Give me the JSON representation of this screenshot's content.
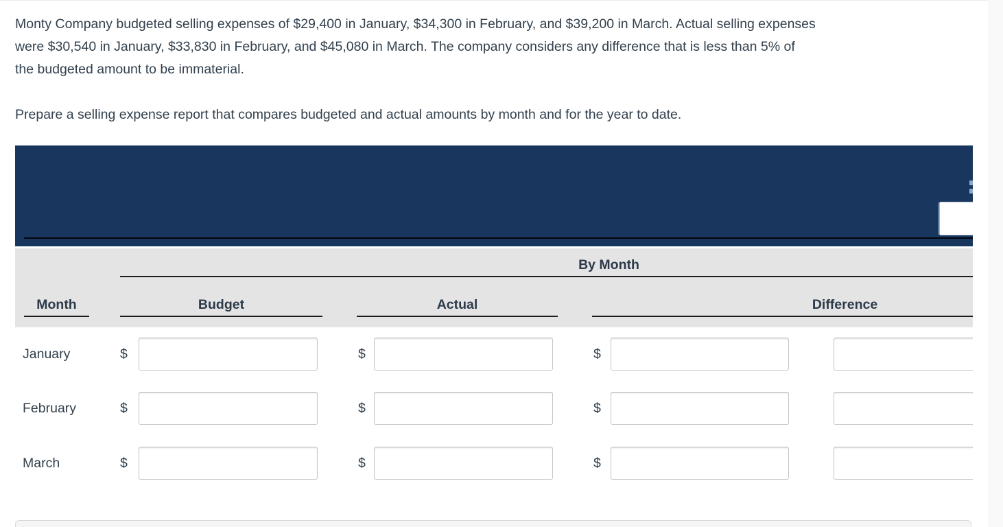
{
  "problem": {
    "statement_lines": [
      "Monty Company budgeted selling expenses of $29,400 in January, $34,300 in February, and $39,200 in March. Actual selling expenses",
      "were $30,540 in January, $33,830 in February, and $45,080 in March. The company considers any difference that is less than 5% of",
      "the budgeted amount to be immaterial."
    ],
    "instruction": "Prepare a selling expense report that compares budgeted and actual amounts by month and for the year to date."
  },
  "report": {
    "group_header": "By Month",
    "columns": {
      "month": "Month",
      "budget": "Budget",
      "actual": "Actual",
      "difference": "Difference"
    },
    "currency_symbol": "$",
    "rows": [
      {
        "month": "January",
        "budget_value": "",
        "actual_value": "",
        "difference_value": "",
        "materiality_value": ""
      },
      {
        "month": "February",
        "budget_value": "",
        "actual_value": "",
        "difference_value": "",
        "materiality_value": ""
      },
      {
        "month": "March",
        "budget_value": "",
        "actual_value": "",
        "difference_value": "",
        "materiality_value": ""
      }
    ]
  },
  "colors": {
    "navy_header": "#19365f",
    "table_header_bg": "#e4e4e4",
    "body_text": "#32404d",
    "header_underline": "#1c1c1c",
    "input_border": "#c6c6c6",
    "next_section_bg": "#f5f5f5"
  }
}
